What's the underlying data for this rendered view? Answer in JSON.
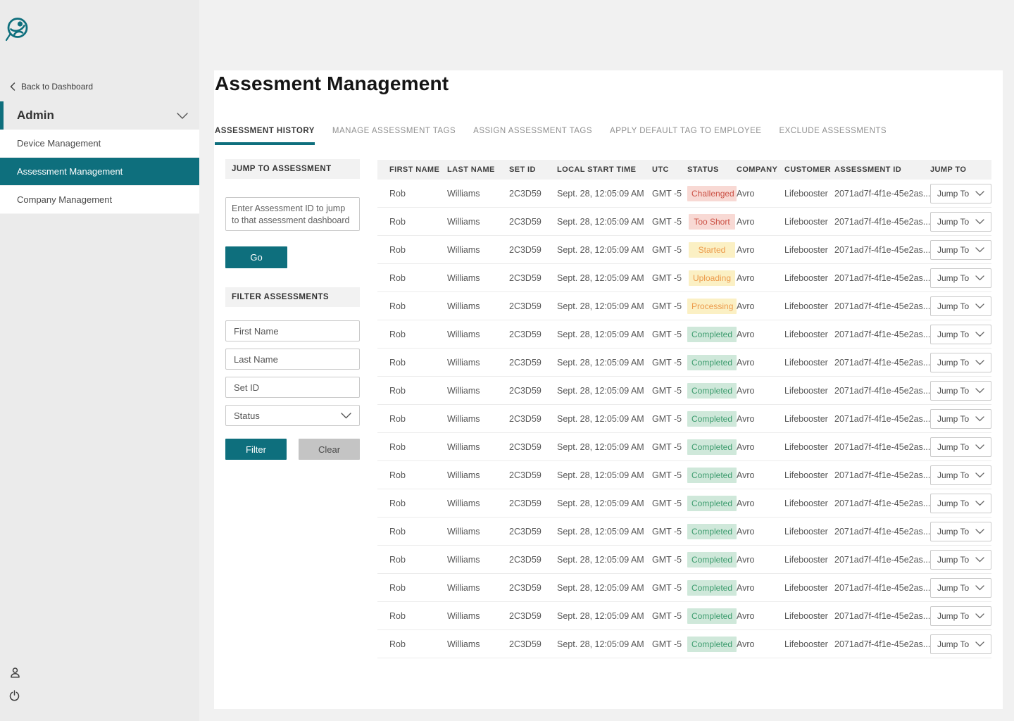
{
  "colors": {
    "teal": "#0e6f7d",
    "sidebar_bg": "#ebebeb",
    "page_bg": "#f1f1f1",
    "badge_danger_bg": "#f8d9d4",
    "badge_danger_text": "#cb5246",
    "badge_warning_bg": "#fbf0c4",
    "badge_warning_text": "#ec9a4a",
    "badge_success_bg": "#cfe8da",
    "badge_success_text": "#3d9c6e"
  },
  "sidebar": {
    "logo_name": "lifebooster-logo",
    "back_label": "Back to Dashboard",
    "section_label": "Admin",
    "items": [
      {
        "label": "Device Management",
        "active": false
      },
      {
        "label": "Assessment Management",
        "active": true
      },
      {
        "label": "Company Management",
        "active": false
      }
    ]
  },
  "header": {
    "title": "Assesment Management"
  },
  "tabs": [
    {
      "label": "ASSESSMENT HISTORY",
      "active": true
    },
    {
      "label": "MANAGE ASSESSMENT TAGS",
      "active": false
    },
    {
      "label": "ASSIGN ASSESSMENT TAGS",
      "active": false
    },
    {
      "label": "APPLY DEFAULT TAG TO EMPLOYEE",
      "active": false
    },
    {
      "label": "EXCLUDE ASSESSMENTS",
      "active": false
    }
  ],
  "jump_panel": {
    "title": "JUMP TO ASSESSMENT",
    "placeholder": "Enter Assessment ID to jump to that assessment dashboard",
    "go_label": "Go"
  },
  "filter_panel": {
    "title": "FILTER ASSESSMENTS",
    "first_name_placeholder": "First Name",
    "last_name_placeholder": "Last Name",
    "set_id_placeholder": "Set ID",
    "status_placeholder": "Status",
    "filter_label": "Filter",
    "clear_label": "Clear"
  },
  "table": {
    "columns": [
      "FIRST NAME",
      "LAST NAME",
      "SET ID",
      "LOCAL START TIME",
      "UTC",
      "STATUS",
      "COMPANY",
      "CUSTOMER",
      "ASSESSMENT ID",
      "JUMP TO"
    ],
    "jump_to_label": "Jump To",
    "status_types": {
      "Challenged": "danger",
      "Too Short": "danger",
      "Started": "warning",
      "Uploading": "warning",
      "Processing": "warning",
      "Completed": "success"
    },
    "rows": [
      {
        "first_name": "Rob",
        "last_name": "Williams",
        "set_id": "2C3D59",
        "local_start_time": "Sept. 28, 12:05:09 AM",
        "utc": "GMT -5",
        "status": "Challenged",
        "company": "Avro",
        "customer": "Lifebooster",
        "assessment_id": "2071ad7f-4f1e-45e2as..."
      },
      {
        "first_name": "Rob",
        "last_name": "Williams",
        "set_id": "2C3D59",
        "local_start_time": "Sept. 28, 12:05:09 AM",
        "utc": "GMT -5",
        "status": "Too Short",
        "company": "Avro",
        "customer": "Lifebooster",
        "assessment_id": "2071ad7f-4f1e-45e2as..."
      },
      {
        "first_name": "Rob",
        "last_name": "Williams",
        "set_id": "2C3D59",
        "local_start_time": "Sept. 28, 12:05:09 AM",
        "utc": "GMT -5",
        "status": "Started",
        "company": "Avro",
        "customer": "Lifebooster",
        "assessment_id": "2071ad7f-4f1e-45e2as..."
      },
      {
        "first_name": "Rob",
        "last_name": "Williams",
        "set_id": "2C3D59",
        "local_start_time": "Sept. 28, 12:05:09 AM",
        "utc": "GMT -5",
        "status": "Uploading",
        "company": "Avro",
        "customer": "Lifebooster",
        "assessment_id": "2071ad7f-4f1e-45e2as..."
      },
      {
        "first_name": "Rob",
        "last_name": "Williams",
        "set_id": "2C3D59",
        "local_start_time": "Sept. 28, 12:05:09 AM",
        "utc": "GMT -5",
        "status": "Processing",
        "company": "Avro",
        "customer": "Lifebooster",
        "assessment_id": "2071ad7f-4f1e-45e2as..."
      },
      {
        "first_name": "Rob",
        "last_name": "Williams",
        "set_id": "2C3D59",
        "local_start_time": "Sept. 28, 12:05:09 AM",
        "utc": "GMT -5",
        "status": "Completed",
        "company": "Avro",
        "customer": "Lifebooster",
        "assessment_id": "2071ad7f-4f1e-45e2as..."
      },
      {
        "first_name": "Rob",
        "last_name": "Williams",
        "set_id": "2C3D59",
        "local_start_time": "Sept. 28, 12:05:09 AM",
        "utc": "GMT -5",
        "status": "Completed",
        "company": "Avro",
        "customer": "Lifebooster",
        "assessment_id": "2071ad7f-4f1e-45e2as..."
      },
      {
        "first_name": "Rob",
        "last_name": "Williams",
        "set_id": "2C3D59",
        "local_start_time": "Sept. 28, 12:05:09 AM",
        "utc": "GMT -5",
        "status": "Completed",
        "company": "Avro",
        "customer": "Lifebooster",
        "assessment_id": "2071ad7f-4f1e-45e2as..."
      },
      {
        "first_name": "Rob",
        "last_name": "Williams",
        "set_id": "2C3D59",
        "local_start_time": "Sept. 28, 12:05:09 AM",
        "utc": "GMT -5",
        "status": "Completed",
        "company": "Avro",
        "customer": "Lifebooster",
        "assessment_id": "2071ad7f-4f1e-45e2as..."
      },
      {
        "first_name": "Rob",
        "last_name": "Williams",
        "set_id": "2C3D59",
        "local_start_time": "Sept. 28, 12:05:09 AM",
        "utc": "GMT -5",
        "status": "Completed",
        "company": "Avro",
        "customer": "Lifebooster",
        "assessment_id": "2071ad7f-4f1e-45e2as..."
      },
      {
        "first_name": "Rob",
        "last_name": "Williams",
        "set_id": "2C3D59",
        "local_start_time": "Sept. 28, 12:05:09 AM",
        "utc": "GMT -5",
        "status": "Completed",
        "company": "Avro",
        "customer": "Lifebooster",
        "assessment_id": "2071ad7f-4f1e-45e2as..."
      },
      {
        "first_name": "Rob",
        "last_name": "Williams",
        "set_id": "2C3D59",
        "local_start_time": "Sept. 28, 12:05:09 AM",
        "utc": "GMT -5",
        "status": "Completed",
        "company": "Avro",
        "customer": "Lifebooster",
        "assessment_id": "2071ad7f-4f1e-45e2as..."
      },
      {
        "first_name": "Rob",
        "last_name": "Williams",
        "set_id": "2C3D59",
        "local_start_time": "Sept. 28, 12:05:09 AM",
        "utc": "GMT -5",
        "status": "Completed",
        "company": "Avro",
        "customer": "Lifebooster",
        "assessment_id": "2071ad7f-4f1e-45e2as..."
      },
      {
        "first_name": "Rob",
        "last_name": "Williams",
        "set_id": "2C3D59",
        "local_start_time": "Sept. 28, 12:05:09 AM",
        "utc": "GMT -5",
        "status": "Completed",
        "company": "Avro",
        "customer": "Lifebooster",
        "assessment_id": "2071ad7f-4f1e-45e2as..."
      },
      {
        "first_name": "Rob",
        "last_name": "Williams",
        "set_id": "2C3D59",
        "local_start_time": "Sept. 28, 12:05:09 AM",
        "utc": "GMT -5",
        "status": "Completed",
        "company": "Avro",
        "customer": "Lifebooster",
        "assessment_id": "2071ad7f-4f1e-45e2as..."
      },
      {
        "first_name": "Rob",
        "last_name": "Williams",
        "set_id": "2C3D59",
        "local_start_time": "Sept. 28, 12:05:09 AM",
        "utc": "GMT -5",
        "status": "Completed",
        "company": "Avro",
        "customer": "Lifebooster",
        "assessment_id": "2071ad7f-4f1e-45e2as..."
      },
      {
        "first_name": "Rob",
        "last_name": "Williams",
        "set_id": "2C3D59",
        "local_start_time": "Sept. 28, 12:05:09 AM",
        "utc": "GMT -5",
        "status": "Completed",
        "company": "Avro",
        "customer": "Lifebooster",
        "assessment_id": "2071ad7f-4f1e-45e2as..."
      }
    ]
  }
}
